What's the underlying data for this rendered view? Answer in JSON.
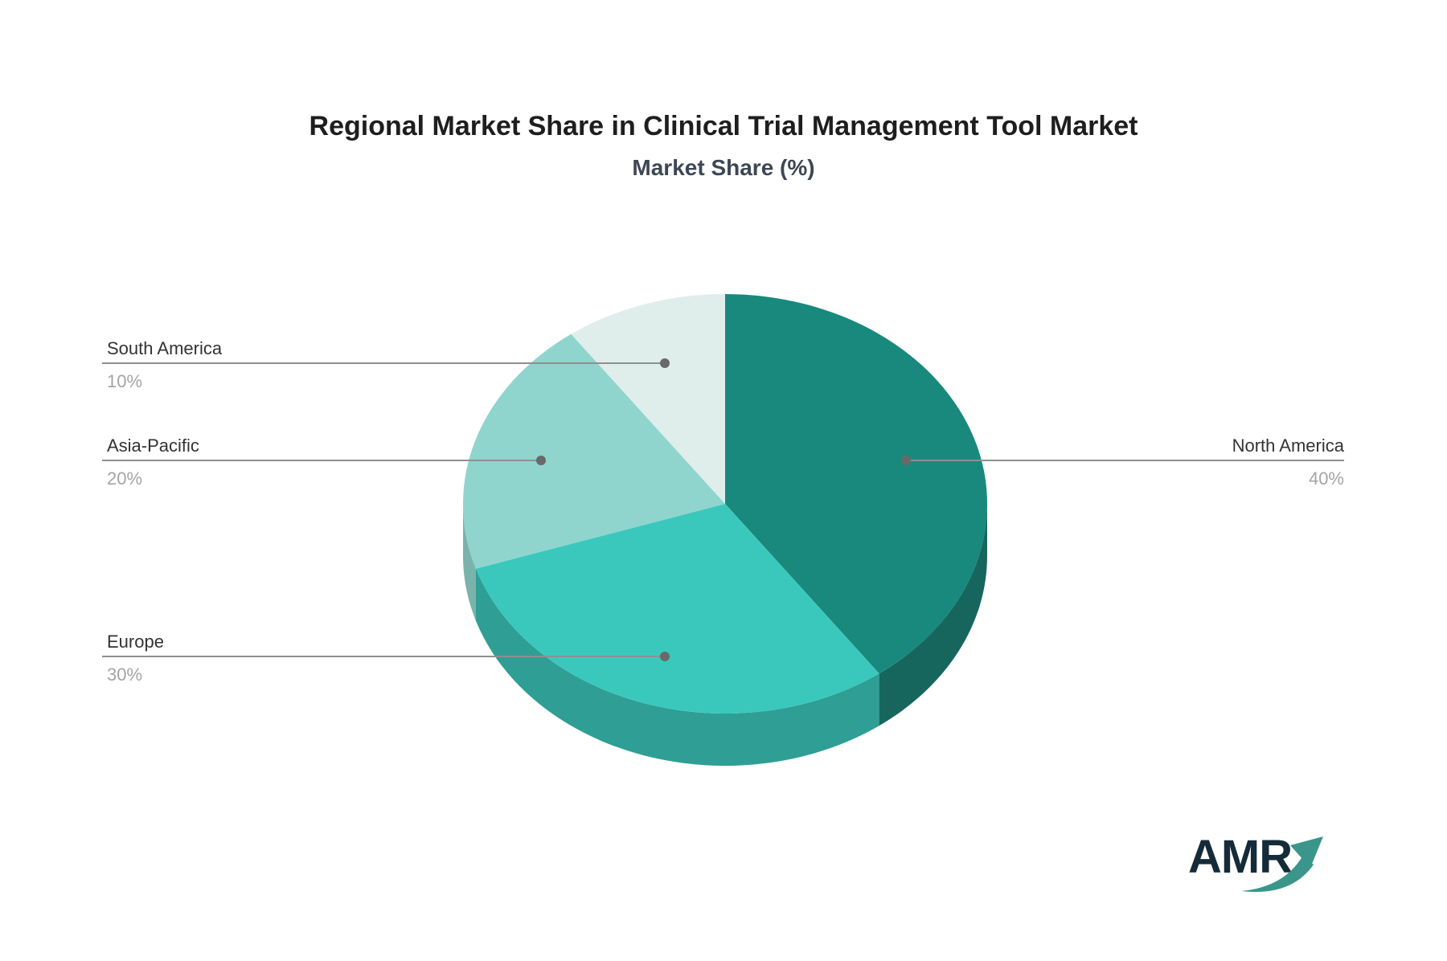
{
  "header": {
    "title": "Regional Market Share in Clinical Trial Management Tool Market",
    "subtitle": "Market Share (%)"
  },
  "chart_data": {
    "type": "pie",
    "style": "3d",
    "title": "Regional Market Share in Clinical Trial Management Tool Market",
    "subtitle": "Market Share (%)",
    "unit": "%",
    "start_angle": "12-oclock",
    "direction": "clockwise",
    "legend_position": "callout-labels",
    "categories": [
      "North America",
      "Europe",
      "Asia-Pacific",
      "South America"
    ],
    "values": [
      40,
      30,
      20,
      10
    ],
    "slices": [
      {
        "label": "North America",
        "value": 40,
        "value_text": "40%",
        "color": "#1A897D",
        "side_color": "#17665E"
      },
      {
        "label": "Europe",
        "value": 30,
        "value_text": "30%",
        "color": "#3BC8BC",
        "side_color": "#2F9E94"
      },
      {
        "label": "Asia-Pacific",
        "value": 20,
        "value_text": "20%",
        "color": "#8FD5CE",
        "side_color": "#7AB3AC"
      },
      {
        "label": "South America",
        "value": 10,
        "value_text": "10%",
        "color": "#DFEEEB",
        "side_color": "#C5DDD8"
      }
    ]
  },
  "callouts": {
    "south_america": {
      "label": "South America",
      "pct": "10%"
    },
    "asia_pacific": {
      "label": "Asia-Pacific",
      "pct": "20%"
    },
    "europe": {
      "label": "Europe",
      "pct": "30%"
    },
    "north_america": {
      "label": "North America",
      "pct": "40%"
    }
  },
  "logo": {
    "text": "AMR",
    "text_color": "#152B39",
    "arrow_color": "#3A958B"
  },
  "colors": {
    "background": "#FFFFFF",
    "leader_line": "#8F8F8F",
    "leader_dot": "#696969",
    "label_text": "#333333",
    "pct_text": "#A4A4A4",
    "title_text": "#1E1E1E",
    "subtitle_text": "#3D4754"
  }
}
